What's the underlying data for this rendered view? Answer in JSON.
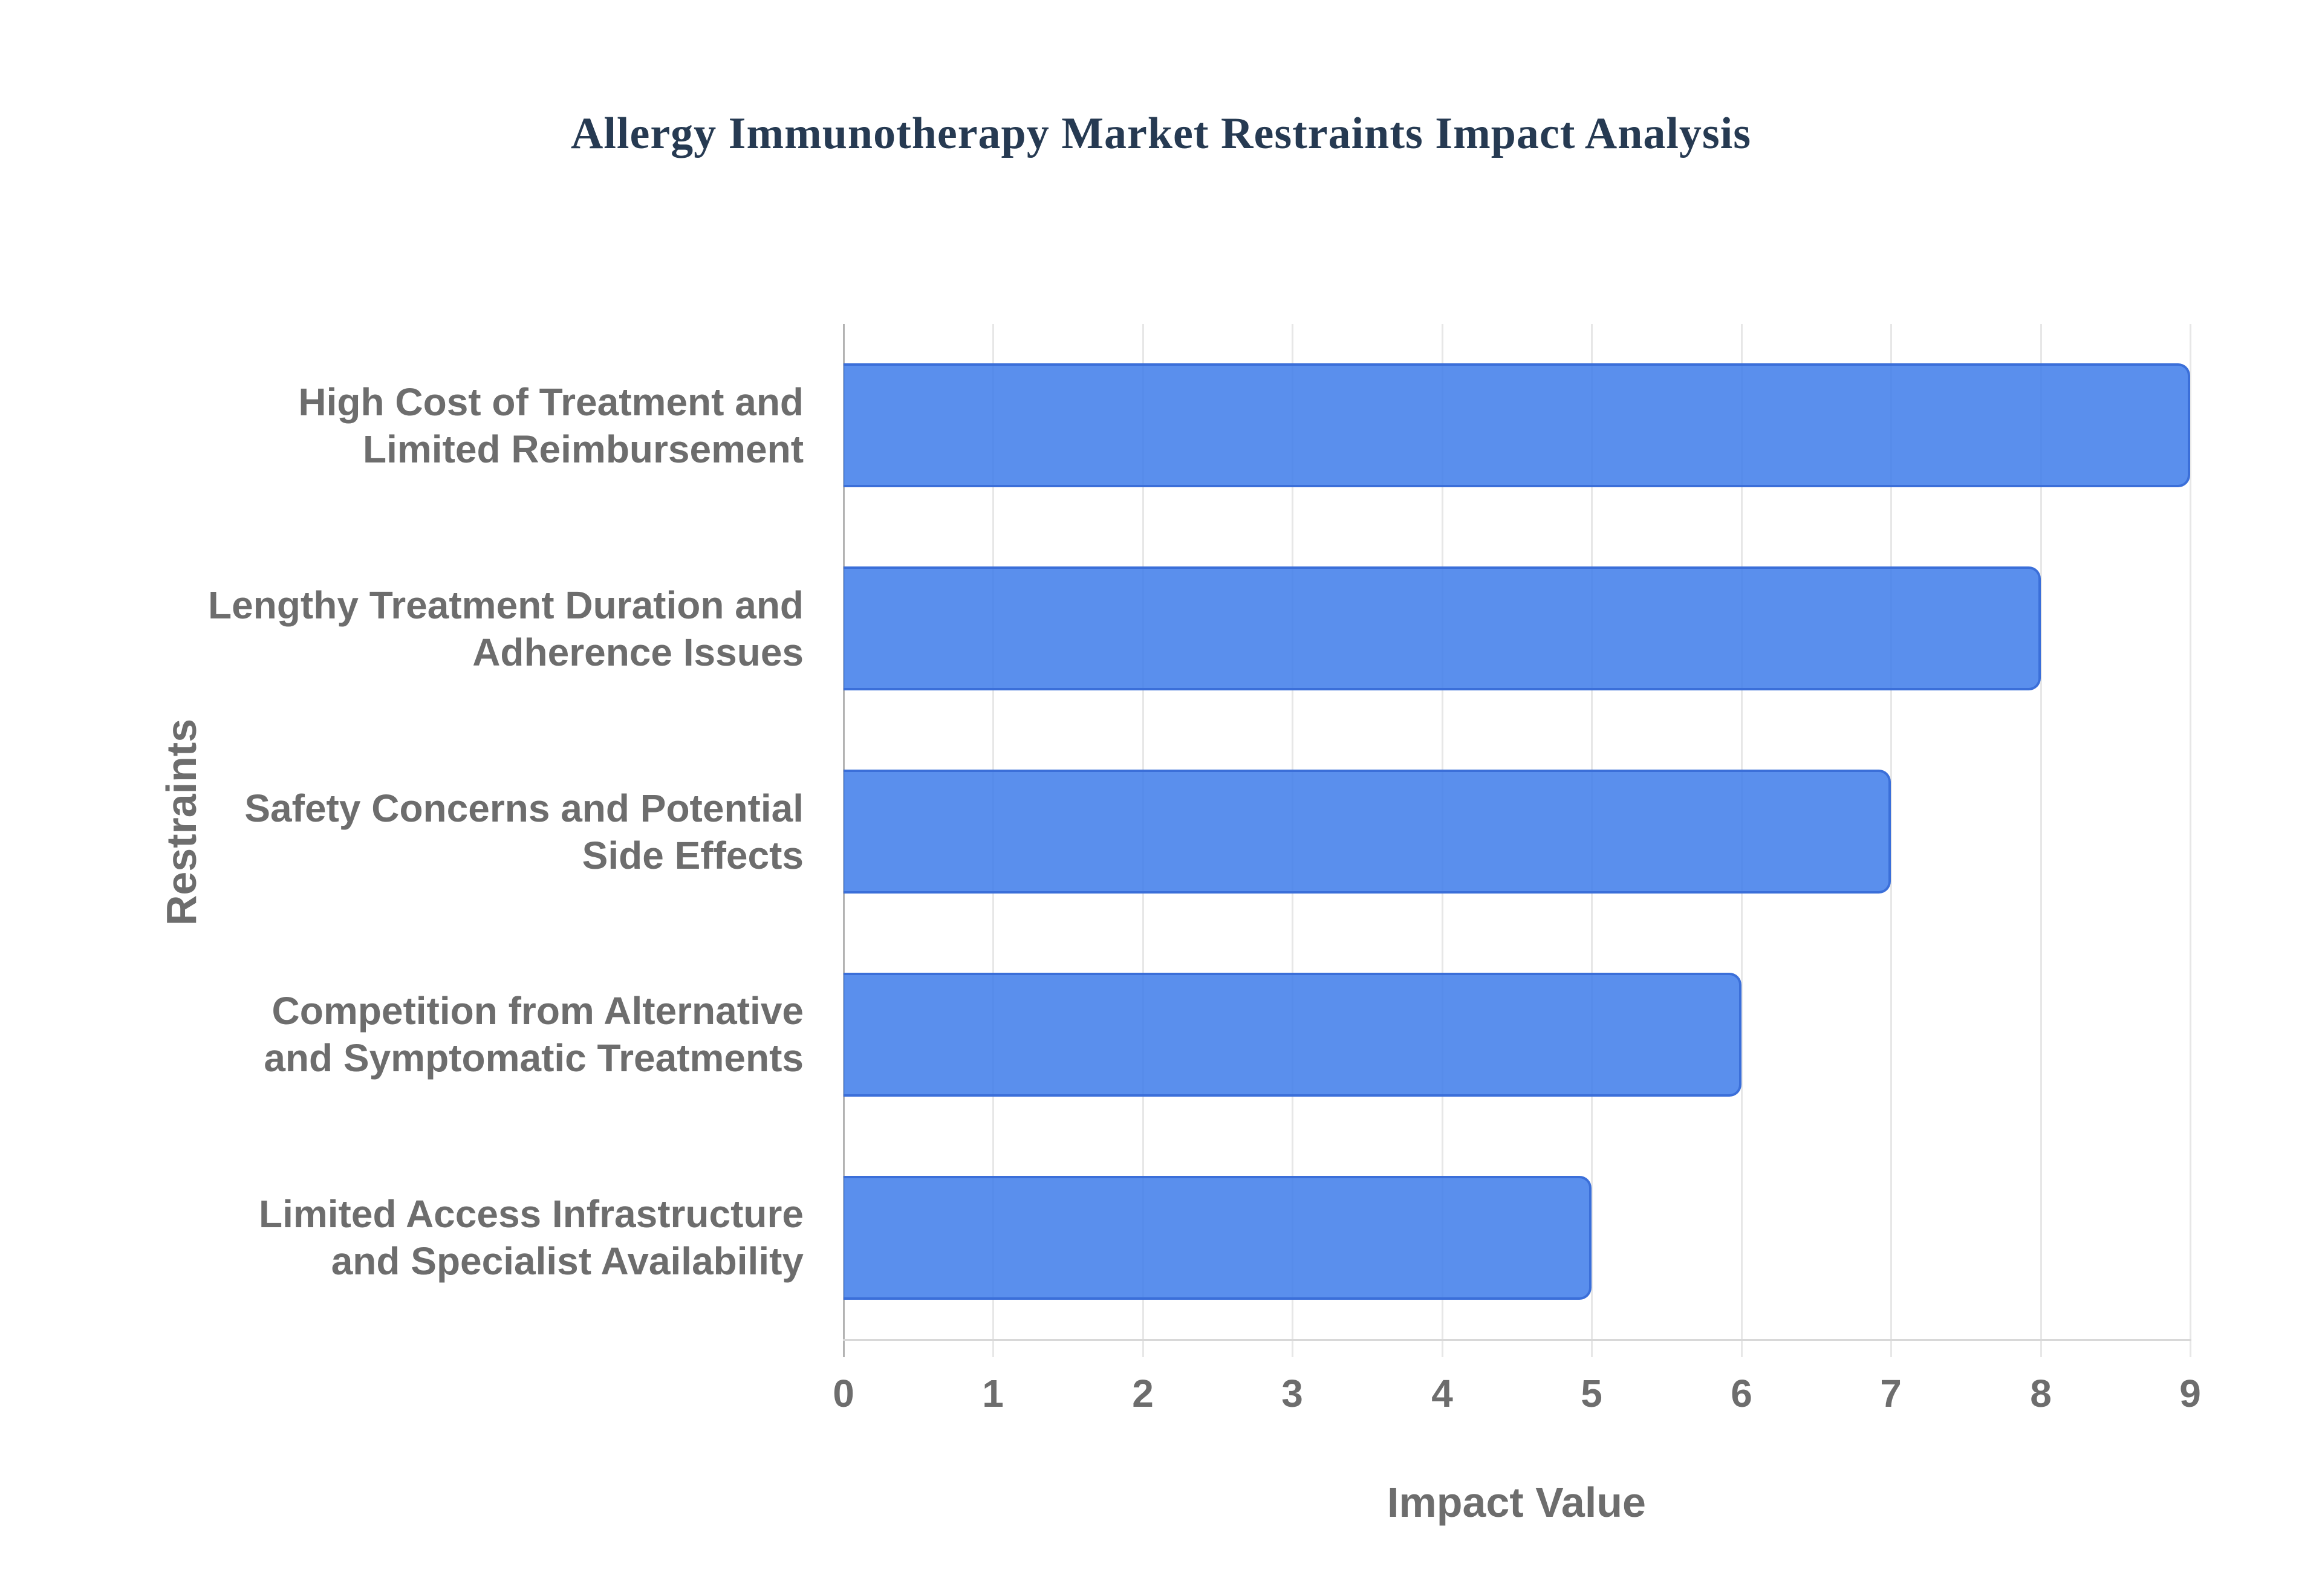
{
  "chart_data": {
    "type": "bar",
    "orientation": "horizontal",
    "title": "Allergy Immunotherapy Market Restraints Impact Analysis",
    "xlabel": "Impact Value",
    "ylabel": "Restraints",
    "categories": [
      "High Cost of Treatment and\nLimited Reimbursement",
      "Lengthy Treatment Duration and\nAdherence Issues",
      "Safety Concerns and Potential\nSide Effects",
      "Competition from Alternative\nand Symptomatic Treatments",
      "Limited Access Infrastructure\nand Specialist Availability"
    ],
    "values": [
      9,
      8,
      7,
      6,
      5
    ],
    "xlim": [
      0,
      9
    ],
    "xticks": [
      "0",
      "1",
      "2",
      "3",
      "4",
      "5",
      "6",
      "7",
      "8",
      "9"
    ],
    "grid": true,
    "legend_position": "none",
    "colors": {
      "bar_fill": "rgba(61, 123, 234, 0.85)",
      "bar_border": "#3b6fd9",
      "gridline": "#e7e7e7",
      "zero_axis_line": "#b3b3b3",
      "bottom_axis_line": "#d8d8d8",
      "label_text": "#6d6d6d",
      "title_text": "#263a52",
      "background": "#ffffff"
    }
  }
}
